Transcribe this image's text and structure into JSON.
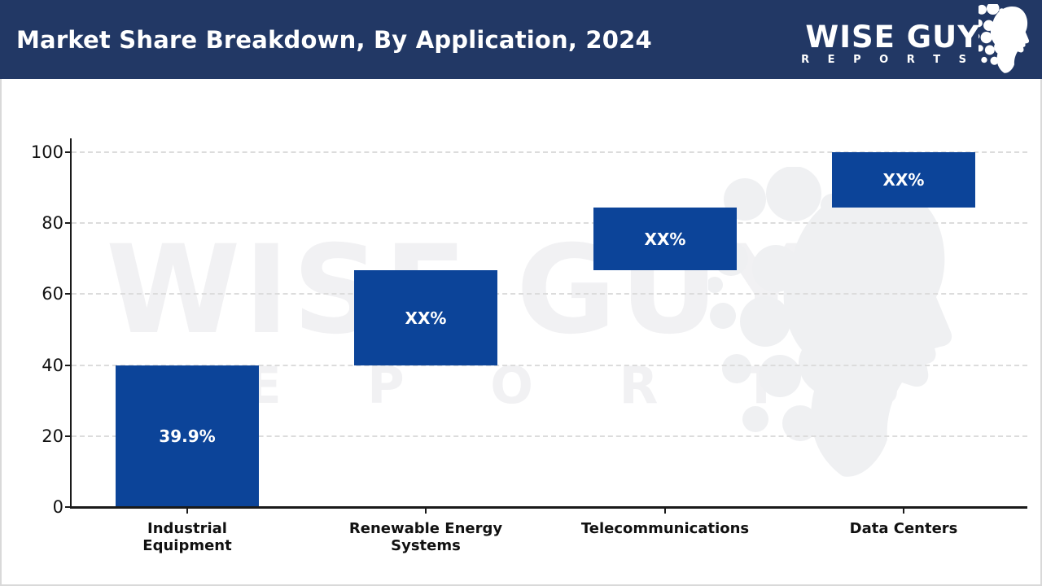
{
  "header": {
    "title": "Market Share Breakdown, By Application, 2024",
    "logo": {
      "wordmark": "WISE GUY",
      "subtext": "R E P O R T S"
    },
    "bg_color": "#223865"
  },
  "watermark": {
    "line1": "WISE GUY",
    "line2": "R E P O R T S"
  },
  "chart_data": {
    "type": "bar",
    "subtype": "waterfall",
    "title": "Market Share Breakdown, By Application, 2024",
    "xlabel": "",
    "ylabel": "",
    "ylim": [
      0,
      105
    ],
    "yticks": [
      0,
      20,
      40,
      60,
      80,
      100
    ],
    "grid": "horizontal-dashed",
    "bar_color": "#0c4499",
    "categories": [
      "Industrial Equipment",
      "Renewable Energy Systems",
      "Telecommunications",
      "Data Centers"
    ],
    "segments": [
      {
        "category": "Industrial Equipment",
        "display": "Industrial\nEquipment",
        "start": 0,
        "end": 39.9,
        "value_label": "39.9%"
      },
      {
        "category": "Renewable Energy Systems",
        "display": "Renewable Energy\nSystems",
        "start": 39.9,
        "end": 66.7,
        "value_label": "XX%"
      },
      {
        "category": "Telecommunications",
        "display": "Telecommunications",
        "start": 66.7,
        "end": 84.4,
        "value_label": "XX%"
      },
      {
        "category": "Data Centers",
        "display": "Data Centers",
        "start": 84.4,
        "end": 100,
        "value_label": "XX%"
      }
    ]
  }
}
